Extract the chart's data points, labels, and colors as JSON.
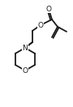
{
  "bg_color": "#ffffff",
  "line_color": "#1a1a1a",
  "line_width": 1.3,
  "figsize": [
    0.9,
    1.32
  ],
  "dpi": 100,
  "xlim": [
    0,
    90
  ],
  "ylim": [
    0,
    132
  ]
}
